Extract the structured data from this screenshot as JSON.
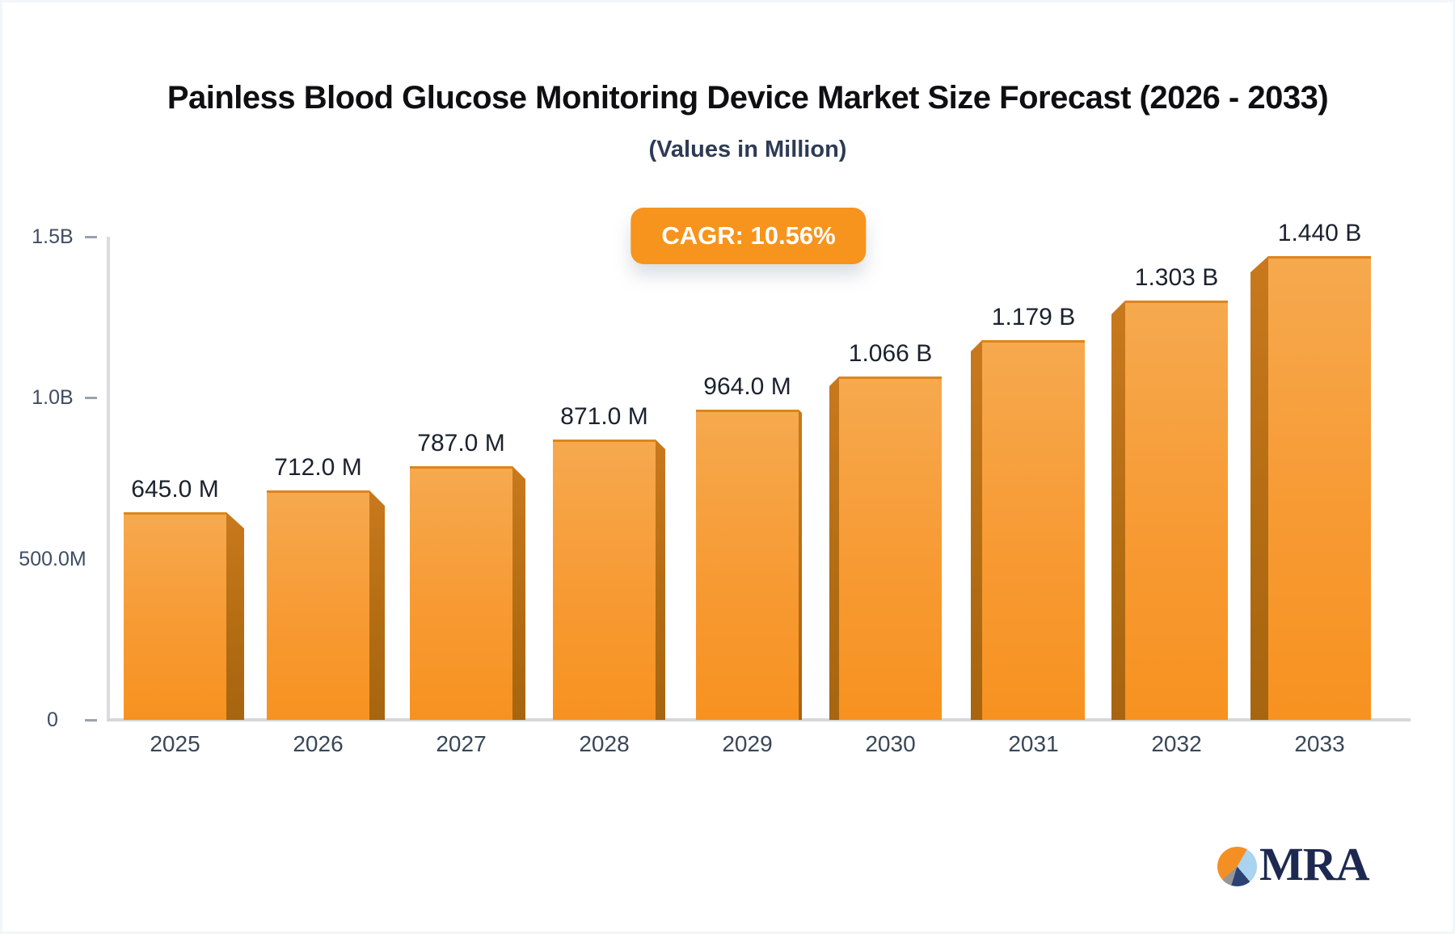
{
  "page": {
    "title": "Painless Blood Glucose Monitoring Device Market Size Forecast (2026 - 2033)",
    "subtitle": "(Values in Million)",
    "cagr_badge": "CAGR: 10.56%"
  },
  "brand": {
    "logo_text": "MRA",
    "logo_pie_colors": [
      "#f49023",
      "#a9d3ee",
      "#2c4273",
      "#95969c"
    ]
  },
  "colors": {
    "accent_orange": "#f7941d",
    "bar_face_top": "#f6a94e",
    "bar_face_bottom": "#f79220",
    "bar_side_dark": "#b26c12",
    "axis_gray": "#d5d7dc",
    "value_label_text": "#1b222e",
    "year_label_text": "#3a4758",
    "badge_text": "#ffffff",
    "logo_navy": "#1d2950"
  },
  "chart_data": {
    "type": "bar",
    "title": "Painless Blood Glucose Monitoring Device Market Size Forecast (2026 - 2033)",
    "subtitle": "(Values in Million)",
    "annotation": "CAGR: 10.56%",
    "categories": [
      "2025",
      "2026",
      "2027",
      "2028",
      "2029",
      "2030",
      "2031",
      "2032",
      "2033"
    ],
    "values": [
      645,
      712,
      787,
      871,
      964,
      1066,
      1179,
      1303,
      1440
    ],
    "value_labels": [
      "645.0 M",
      "712.0 M",
      "787.0 M",
      "871.0 M",
      "964.0 M",
      "1.066 B",
      "1.179 B",
      "1.303 B",
      "1.440 B"
    ],
    "values_unit": "Million",
    "xlabel": "",
    "ylabel": "",
    "ylim": [
      0,
      1500
    ],
    "y_ticks": [
      {
        "label": "1.5B",
        "value": 1500,
        "dash": true
      },
      {
        "label": "1.0B",
        "value": 1000,
        "dash": true
      },
      {
        "label": "500.0M",
        "value": 500,
        "dash": false
      },
      {
        "label": "0",
        "value": 0,
        "dash": true
      }
    ],
    "grid": false,
    "legend": false,
    "bar_style": "3d-extruded-orange-gradient"
  }
}
